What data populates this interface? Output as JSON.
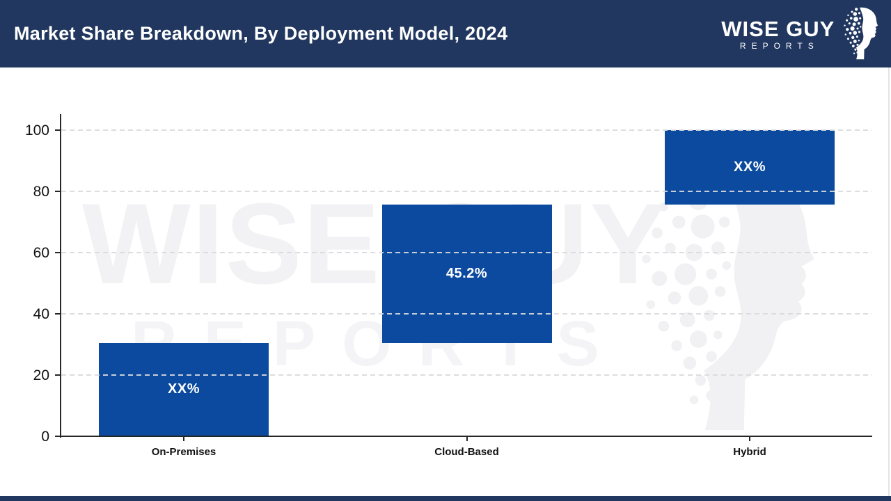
{
  "header": {
    "title": "Market Share Breakdown, By Deployment Model, 2024",
    "logo": {
      "line1": "WISE GUY",
      "line2": "REPORTS"
    },
    "bg_color": "#21375f"
  },
  "watermark": {
    "line1": "WISE GUY",
    "line2": "REPORTS"
  },
  "chart_data": {
    "type": "bar",
    "subtype": "floating-waterfall",
    "title": "Market Share Breakdown, By Deployment Model, 2024",
    "categories": [
      "On-Premises",
      "Cloud-Based",
      "Hybrid"
    ],
    "segments": [
      {
        "category": "On-Premises",
        "start": 0,
        "end": 30.5,
        "label": "XX%"
      },
      {
        "category": "Cloud-Based",
        "start": 30.5,
        "end": 75.7,
        "label": "45.2%"
      },
      {
        "category": "Hybrid",
        "start": 75.7,
        "end": 100,
        "label": "XX%"
      }
    ],
    "yticks": [
      0,
      20,
      40,
      60,
      80,
      100
    ],
    "ylim": [
      0,
      105
    ],
    "xlabel": "",
    "ylabel": "",
    "grid": "horizontal-dashed",
    "legend_position": "none",
    "bar_color": "#0b4a9e",
    "bar_label_color": "#ffffff",
    "axis_color": "#262626",
    "grid_color": "#dadadc",
    "header_color": "#21375f"
  }
}
